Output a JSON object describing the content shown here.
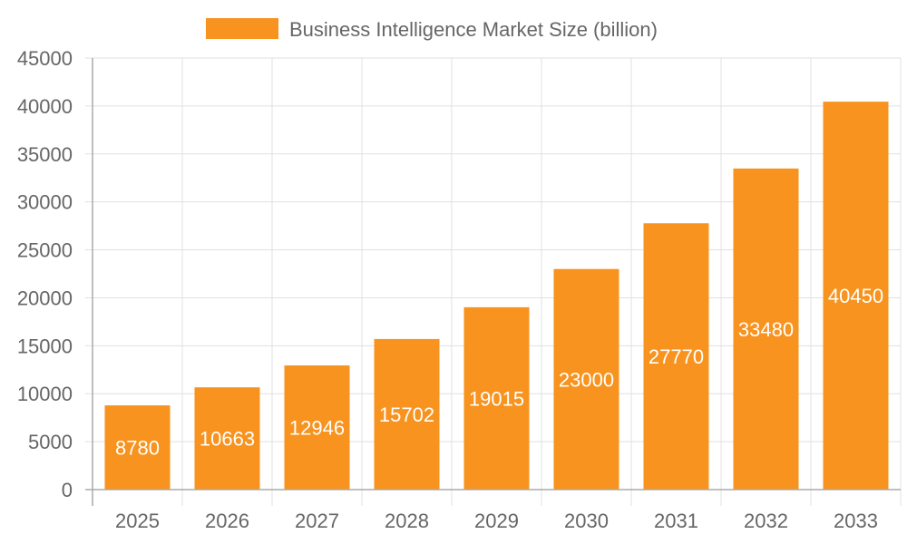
{
  "chart_data": {
    "type": "bar",
    "title": "",
    "legend": [
      {
        "label": "Business Intelligence Market Size (billion)",
        "color": "#f7931e"
      }
    ],
    "legend_position": "top",
    "categories": [
      "2025",
      "2026",
      "2027",
      "2028",
      "2029",
      "2030",
      "2031",
      "2032",
      "2033"
    ],
    "series": [
      {
        "name": "Business Intelligence Market Size (billion)",
        "color": "#f7931e",
        "values": [
          8780,
          10663,
          12946,
          15702,
          19015,
          23000,
          27770,
          33480,
          40450
        ]
      }
    ],
    "xlabel": "",
    "ylabel": "",
    "ylim": [
      0,
      45000
    ],
    "yticks": [
      0,
      5000,
      10000,
      15000,
      20000,
      25000,
      30000,
      35000,
      40000,
      45000
    ],
    "grid": true,
    "data_labels": true
  }
}
